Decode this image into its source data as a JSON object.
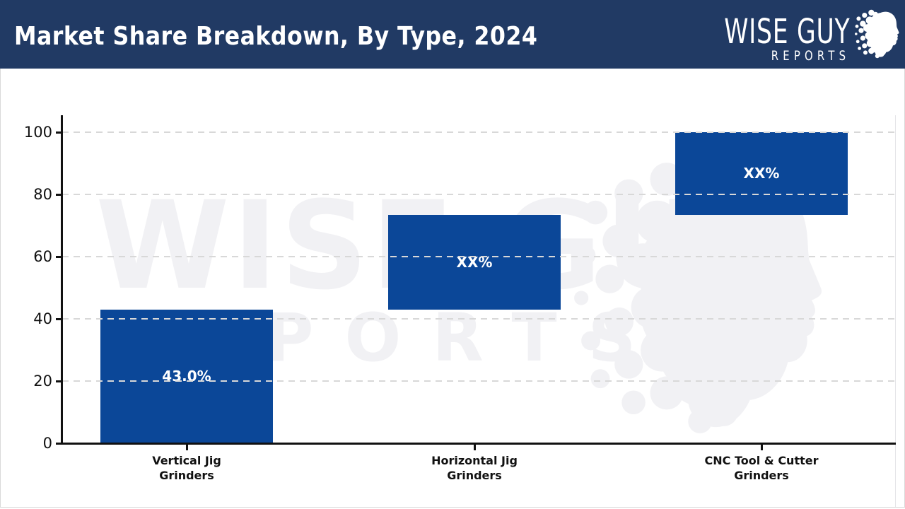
{
  "header": {
    "title": "Market Share Breakdown, By Type, 2024",
    "brand": {
      "line1": "WISE GUY",
      "line2": "REPORTS"
    }
  },
  "watermark": {
    "line1": "WISE GUY",
    "line2": "REPORTS"
  },
  "colors": {
    "header_bg": "#213a64",
    "bar": "#0b4798",
    "bar_label": "#ffffff",
    "axis": "#111111",
    "gridline": "#d8d8d8",
    "watermark": "#f1f1f4"
  },
  "chart_data": {
    "type": "bar",
    "title": "Market Share Breakdown, By Type, 2024",
    "categories": [
      "Vertical Jig Grinders",
      "Horizontal Jig Grinders",
      "CNC Tool & Cutter Grinders"
    ],
    "category_lines": [
      [
        "Vertical Jig",
        "Grinders"
      ],
      [
        "Horizontal Jig",
        "Grinders"
      ],
      [
        "CNC Tool & Cutter",
        "Grinders"
      ]
    ],
    "bars": [
      {
        "category": "Vertical Jig Grinders",
        "start": 0,
        "end": 43,
        "label": "43.0%"
      },
      {
        "category": "Horizontal Jig Grinders",
        "start": 43,
        "end": 73.5,
        "label": "XX%"
      },
      {
        "category": "CNC Tool & Cutter Grinders",
        "start": 73.5,
        "end": 100,
        "label": "XX%"
      }
    ],
    "xlabel": "",
    "ylabel": "",
    "ylim": [
      0,
      105
    ],
    "yticks": [
      0,
      20,
      40,
      60,
      80,
      100
    ],
    "grid": {
      "axis": "y",
      "style": "dashed",
      "drawn_above_bars": true
    },
    "legend_position": "none",
    "layout_hint": "waterfall-style floating bars; each segment begins where the previous one ends"
  }
}
